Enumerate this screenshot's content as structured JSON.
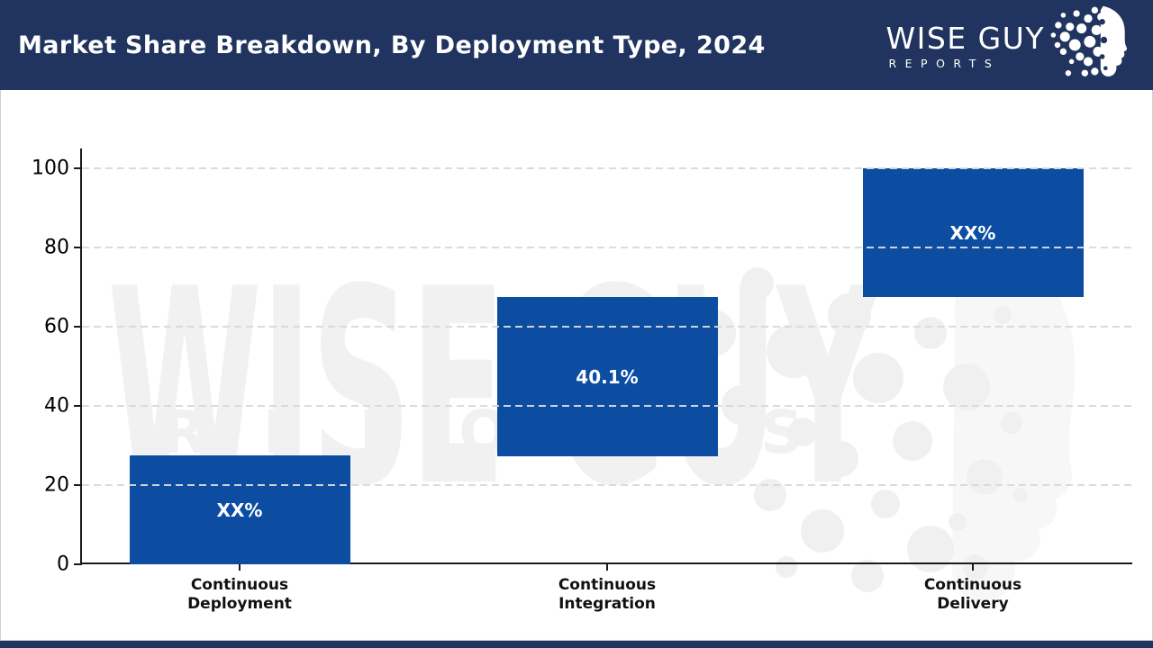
{
  "header": {
    "title": "Market Share Breakdown, By Deployment Type, 2024",
    "logo": {
      "name": "WISE GUY",
      "sub": "REPORTS"
    }
  },
  "watermark": {
    "brand": "WISE GUY",
    "sub": "REPORTS"
  },
  "chart_data": {
    "type": "bar",
    "subtype": "waterfall",
    "title": "Market Share Breakdown, By Deployment Type, 2024",
    "categories": [
      {
        "label_lines": [
          "Continuous",
          "Deployment"
        ]
      },
      {
        "label_lines": [
          "Continuous",
          "Integration"
        ]
      },
      {
        "label_lines": [
          "Continuous",
          "Delivery"
        ]
      }
    ],
    "bars": [
      {
        "name": "Continuous Deployment",
        "start": 0,
        "end": 27.4,
        "label": "XX%"
      },
      {
        "name": "Continuous Integration",
        "start": 27.3,
        "end": 67.4,
        "label": "40.1%"
      },
      {
        "name": "Continuous Delivery",
        "start": 67.4,
        "end": 100,
        "label": "XX%"
      }
    ],
    "yticks": [
      0,
      20,
      40,
      60,
      80,
      100
    ],
    "ylim": [
      0,
      105
    ],
    "xlabel": "",
    "ylabel": "",
    "legend": "none",
    "grid": "horizontal-dashed",
    "bar_color": "#0c4da2"
  },
  "colors": {
    "header_bg": "#21345f",
    "bar": "#0c4da2",
    "gridline": "#d9d9d9",
    "watermark": "#f1f1f2",
    "axis": "#1a1a1a"
  }
}
